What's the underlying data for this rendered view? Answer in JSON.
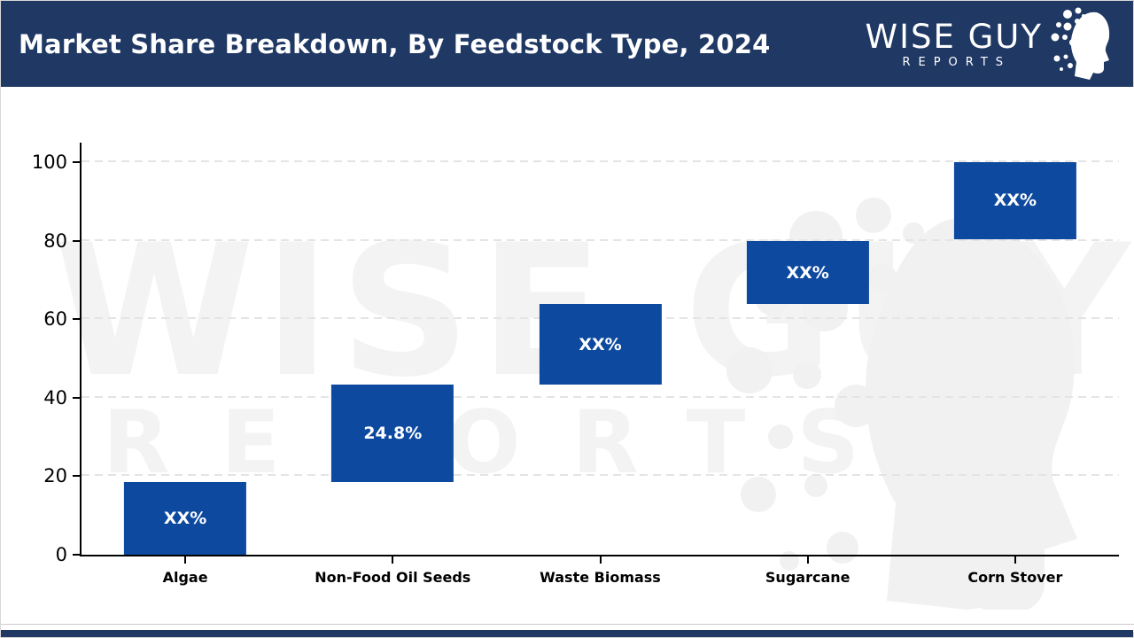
{
  "header": {
    "title": "Market Share Breakdown, By Feedstock Type, 2024",
    "brand": {
      "line1": "WISE GUY",
      "line2": "REPORTS"
    }
  },
  "watermark": {
    "line1": "WISE GUY",
    "line2": "REPORTS"
  },
  "colors": {
    "header_bg": "#1f3864",
    "footer_bg": "#1f3864",
    "bar": "#0d499e",
    "grid": "#e4e4e4",
    "axis": "#000000",
    "watermark": "#f3f3f3",
    "bar_value_text": "#ffffff"
  },
  "chart_data": {
    "type": "bar",
    "subtype": "floating-waterfall",
    "title": "Market Share Breakdown, By Feedstock Type, 2024",
    "xlabel": "",
    "ylabel": "",
    "categories": [
      "Algae",
      "Non-Food Oil Seeds",
      "Waste Biomass",
      "Sugarcane",
      "Corn Stover"
    ],
    "bars": [
      {
        "label": "Algae",
        "start": 0,
        "end": 18.5,
        "value_label": "XX%"
      },
      {
        "label": "Non-Food Oil Seeds",
        "start": 18.5,
        "end": 43.3,
        "value_label": "24.8%"
      },
      {
        "label": "Waste Biomass",
        "start": 43.3,
        "end": 63.8,
        "value_label": "XX%"
      },
      {
        "label": "Sugarcane",
        "start": 63.8,
        "end": 80.0,
        "value_label": "XX%"
      },
      {
        "label": "Corn Stover",
        "start": 80.5,
        "end": 100,
        "value_label": "XX%"
      }
    ],
    "y_ticks": [
      0,
      20,
      40,
      60,
      80,
      100
    ],
    "ylim": [
      0,
      105
    ],
    "grid": "horizontal-dashed",
    "legend": "none"
  }
}
